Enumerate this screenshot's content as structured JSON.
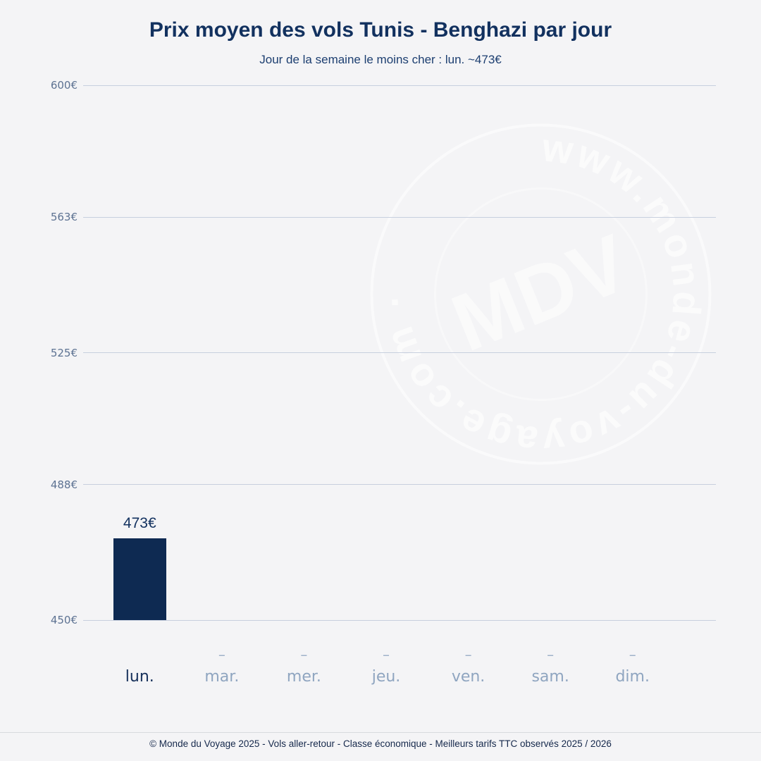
{
  "chart_data": {
    "type": "bar",
    "title": "Prix moyen des vols Tunis - Benghazi par jour",
    "subtitle": "Jour de la semaine le moins cher : lun. ~473€",
    "categories": [
      "lun.",
      "mar.",
      "mer.",
      "jeu.",
      "ven.",
      "sam.",
      "dim."
    ],
    "values": [
      473,
      null,
      null,
      null,
      null,
      null,
      null
    ],
    "bar_label": "473€",
    "no_data_marker": "–",
    "ylim": [
      450,
      600
    ],
    "yticks": [
      600,
      563,
      525,
      488,
      450
    ],
    "ytick_labels": [
      "600€",
      "563€",
      "525€",
      "488€",
      "450€"
    ],
    "xlabel": "",
    "ylabel": "",
    "grid": true,
    "legend": "none",
    "bar_color": "#0e2a52"
  },
  "watermark": {
    "ring_text": "www.monde-du-voyage.com ·",
    "monogram": "MDV"
  },
  "footer": {
    "text": "© Monde du Voyage 2025 - Vols aller-retour - Classe économique - Meilleurs tarifs TTC observés 2025 / 2026"
  },
  "colors": {
    "background": "#f4f4f6",
    "title": "#12315f",
    "gridline": "#c7cfde",
    "axis_label": "#5d7292",
    "day_active": "#16305a",
    "day_inactive": "#8fa5c0",
    "bar": "#0e2a52"
  }
}
